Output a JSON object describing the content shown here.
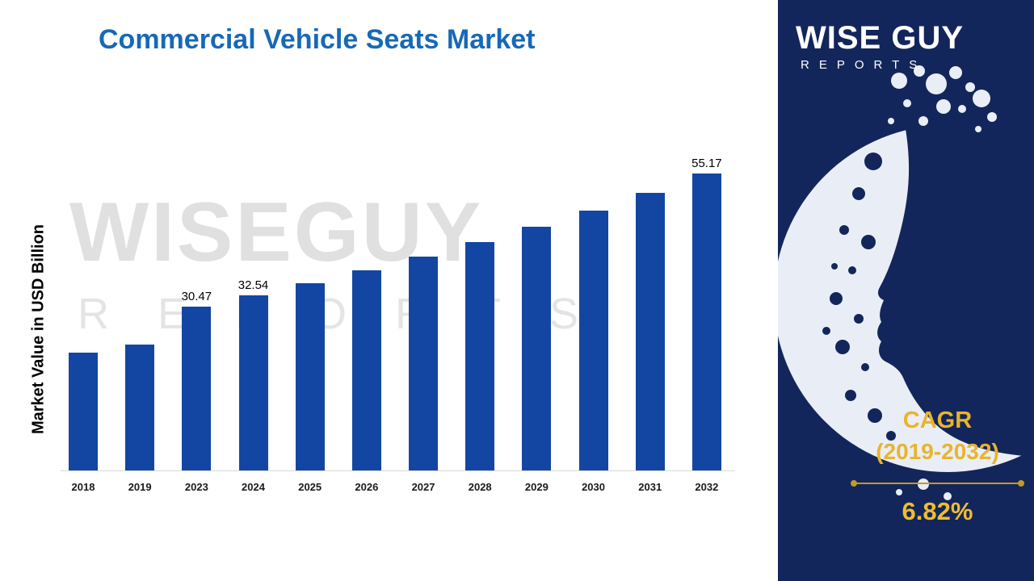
{
  "title": "Commercial Vehicle Seats Market",
  "y_axis_label": "Market Value in USD Billion",
  "watermark": {
    "line1": "WISEGUY",
    "line2": "REPORTS"
  },
  "logo": {
    "name_line": "WISE GUY",
    "reports_line": "REPORTS"
  },
  "cagr": {
    "label": "CAGR",
    "range": "(2019-2032)",
    "value": "6.82%"
  },
  "colors": {
    "bar": "#1346a3",
    "title": "#1769b6",
    "panel": "#13265b",
    "gold": "#e9b42c",
    "watermark": "#e0e0e0"
  },
  "chart_data": {
    "type": "bar",
    "title": "Commercial Vehicle Seats Market",
    "xlabel": "",
    "ylabel": "Market Value in USD Billion",
    "unit": "USD Billion",
    "categories": [
      "2018",
      "2019",
      "2023",
      "2024",
      "2025",
      "2026",
      "2027",
      "2028",
      "2029",
      "2030",
      "2031",
      "2032"
    ],
    "values": [
      21.92,
      23.41,
      30.47,
      32.54,
      34.76,
      37.13,
      39.66,
      42.36,
      45.25,
      48.34,
      51.63,
      55.17
    ],
    "data_labels": [
      null,
      null,
      "30.47",
      "32.54",
      null,
      null,
      null,
      null,
      null,
      null,
      null,
      "55.17"
    ],
    "ylim": [
      0,
      60
    ],
    "grid": false,
    "legend": "none",
    "cagr_percent": 6.82,
    "cagr_range": "2019-2032"
  }
}
